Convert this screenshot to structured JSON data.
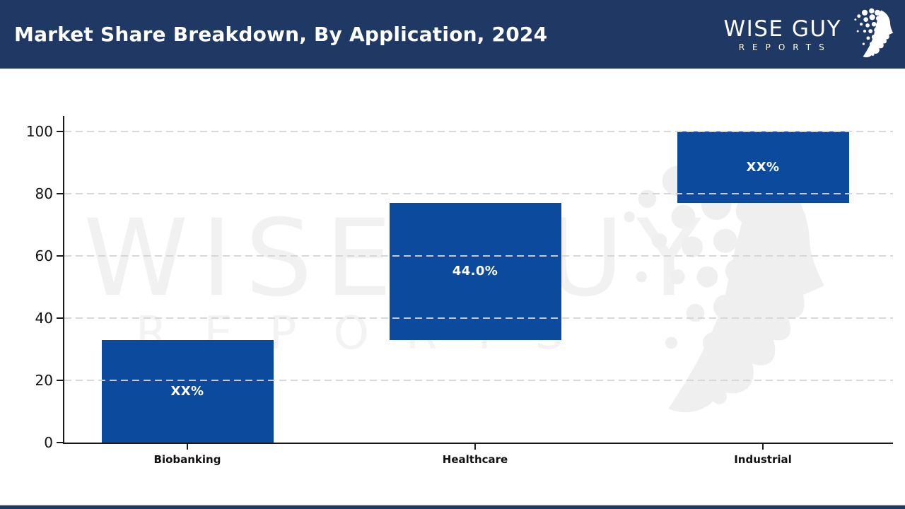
{
  "header": {
    "title": "Market Share Breakdown, By Application, 2024",
    "bg_color": "#1f3864",
    "logo": {
      "line1": "WISE GUY",
      "line2": "REPORTS"
    }
  },
  "watermark": {
    "line1": "WISE GUY",
    "line2": "REPORTS"
  },
  "chart_data": {
    "type": "bar",
    "subtype": "stacked-waterfall (floating segment bars)",
    "title": "Market Share Breakdown, By Application, 2024",
    "xlabel": "",
    "ylabel": "",
    "unit": "%",
    "categories": [
      "Biobanking",
      "Healthcare",
      "Industrial"
    ],
    "values": [
      33,
      44,
      23
    ],
    "bars": [
      {
        "category": "Biobanking",
        "start": 0,
        "end": 33,
        "value_label": "XX%"
      },
      {
        "category": "Healthcare",
        "start": 33,
        "end": 77,
        "value_label": "44.0%"
      },
      {
        "category": "Industrial",
        "start": 77,
        "end": 100,
        "value_label": "XX%"
      }
    ],
    "yticks": [
      0,
      20,
      40,
      60,
      80,
      100
    ],
    "ylim": [
      0,
      105
    ],
    "grid": {
      "axis": "y",
      "style": "dashed",
      "color": "#d8d8d8",
      "drawn_over_bars": true
    },
    "legend": "none",
    "bar_color": "#0c4a9e",
    "bar_label_color": "#ffffff",
    "axis_color": "#1a1a1a"
  },
  "footer": {
    "bar_color": "#1f3864"
  }
}
